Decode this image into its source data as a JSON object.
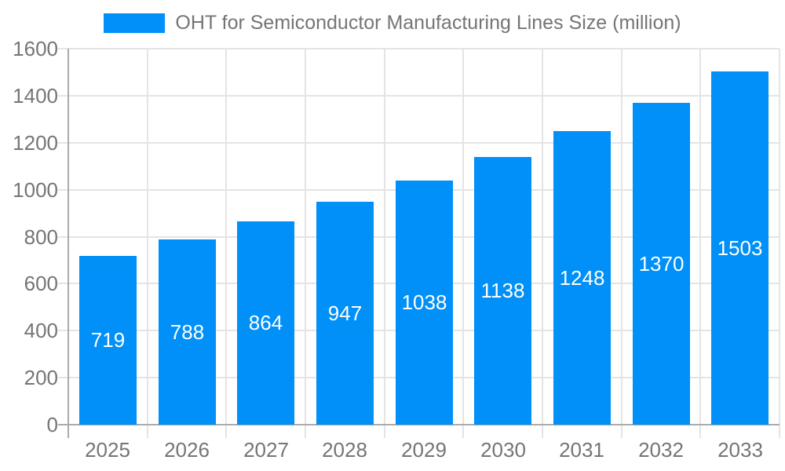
{
  "chart_data": {
    "type": "bar",
    "legend": "OHT for Semiconductor Manufacturing Lines Size (million)",
    "categories": [
      "2025",
      "2026",
      "2027",
      "2028",
      "2029",
      "2030",
      "2031",
      "2032",
      "2033"
    ],
    "values": [
      719,
      788,
      864,
      947,
      1038,
      1138,
      1248,
      1370,
      1503
    ],
    "xlabel": "",
    "ylabel": "",
    "ylim": [
      0,
      1600
    ],
    "yticks": [
      0,
      200,
      400,
      600,
      800,
      1000,
      1200,
      1400,
      1600
    ],
    "grid": true,
    "legend_position": "top",
    "colors": {
      "bar": "#0090F8",
      "axis_line": "#ababab",
      "gridline": "#e4e4e4",
      "tick_label": "#757575",
      "bar_label": "#ffffff",
      "background": "#ffffff"
    }
  }
}
